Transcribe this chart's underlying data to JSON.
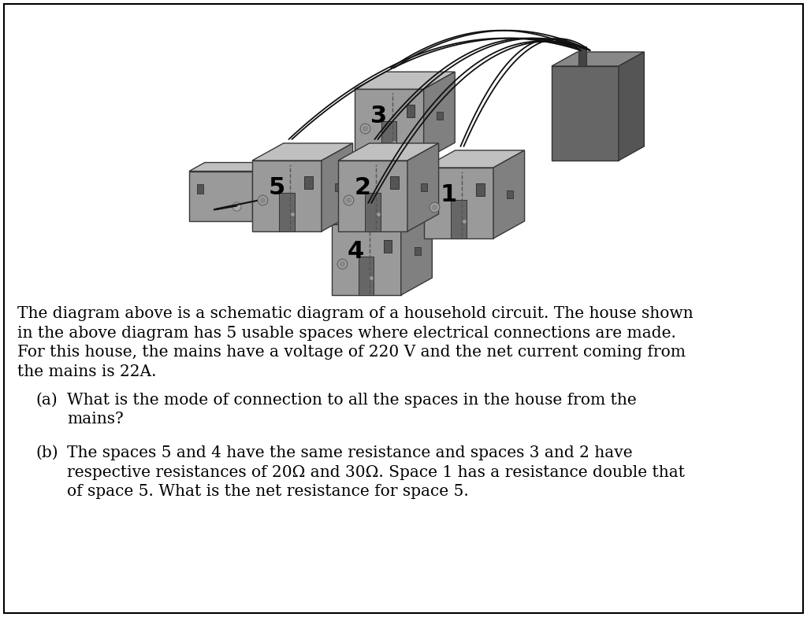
{
  "bg_color": "#ffffff",
  "border_color": "#000000",
  "para_lines": [
    "The diagram above is a schematic diagram of a household circuit. The house shown",
    "in the above diagram has 5 usable spaces where electrical connections are made.",
    "For this house, the mains have a voltage of 220 V and the net current coming from",
    "the mains is 22A."
  ],
  "q_a_label": "(a)",
  "q_a_line1": "What is the mode of connection to all the spaces in the house from the",
  "q_a_line2": "mains?",
  "q_b_label": "(b)",
  "q_b_line1": "The spaces 5 and 4 have the same resistance and spaces 3 and 2 have",
  "q_b_line2": "respective resistances of 20Ω and 30Ω. Space 1 has a resistance double that",
  "q_b_line3": "of space 5. What is the net resistance for space 5.",
  "font_size": 14.5,
  "text_color": "#000000",
  "wall_top": "#c8c8c8",
  "wall_front": "#a0a0a0",
  "wall_side": "#888888",
  "wall_dark": "#707070",
  "wire_color": "#111111",
  "box_color": "#666666",
  "socket_color": "#999999",
  "room_labels": [
    "5",
    "3",
    "2",
    "1",
    "4"
  ],
  "label_fontsize": 22
}
